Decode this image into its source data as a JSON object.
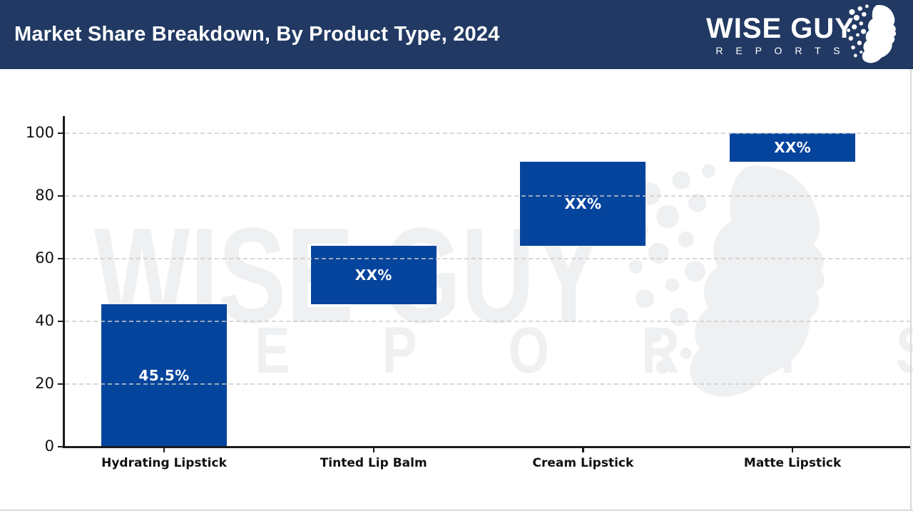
{
  "header": {
    "title": "Market Share Breakdown, By Product Type, 2024"
  },
  "logo": {
    "line1": "WISE GUY",
    "line2": "R E P O R T S"
  },
  "watermark": {
    "line1": "WISE GUY",
    "line2": "R E P O R T S"
  },
  "chart_data": {
    "type": "bar",
    "subtype": "waterfall",
    "title": "Market Share Breakdown, By Product Type, 2024",
    "categories": [
      "Hydrating Lipstick",
      "Tinted Lip Balm",
      "Cream Lipstick",
      "Matte Lipstick"
    ],
    "segments": [
      {
        "category": "Hydrating Lipstick",
        "start": 0,
        "end": 45.5,
        "label": "45.5%"
      },
      {
        "category": "Tinted Lip Balm",
        "start": 45.5,
        "end": 64,
        "label": "XX%"
      },
      {
        "category": "Cream Lipstick",
        "start": 64,
        "end": 91,
        "label": "XX%"
      },
      {
        "category": "Matte Lipstick",
        "start": 91,
        "end": 100,
        "label": "XX%"
      }
    ],
    "yticks": [
      0,
      20,
      40,
      60,
      80,
      100
    ],
    "ylim": [
      0,
      105
    ],
    "xlabel": "",
    "ylabel": "",
    "grid": "horizontal-dashed",
    "legend": "none",
    "bar_color": "#05449c",
    "value_label_color": "#ffffff"
  },
  "colors": {
    "header_bg": "#213963",
    "bar": "#05449c",
    "axis": "#1a1a1a",
    "gridline": "#cbcbcb",
    "watermark": "#eef0f2",
    "frame": "#d9d9d9"
  }
}
